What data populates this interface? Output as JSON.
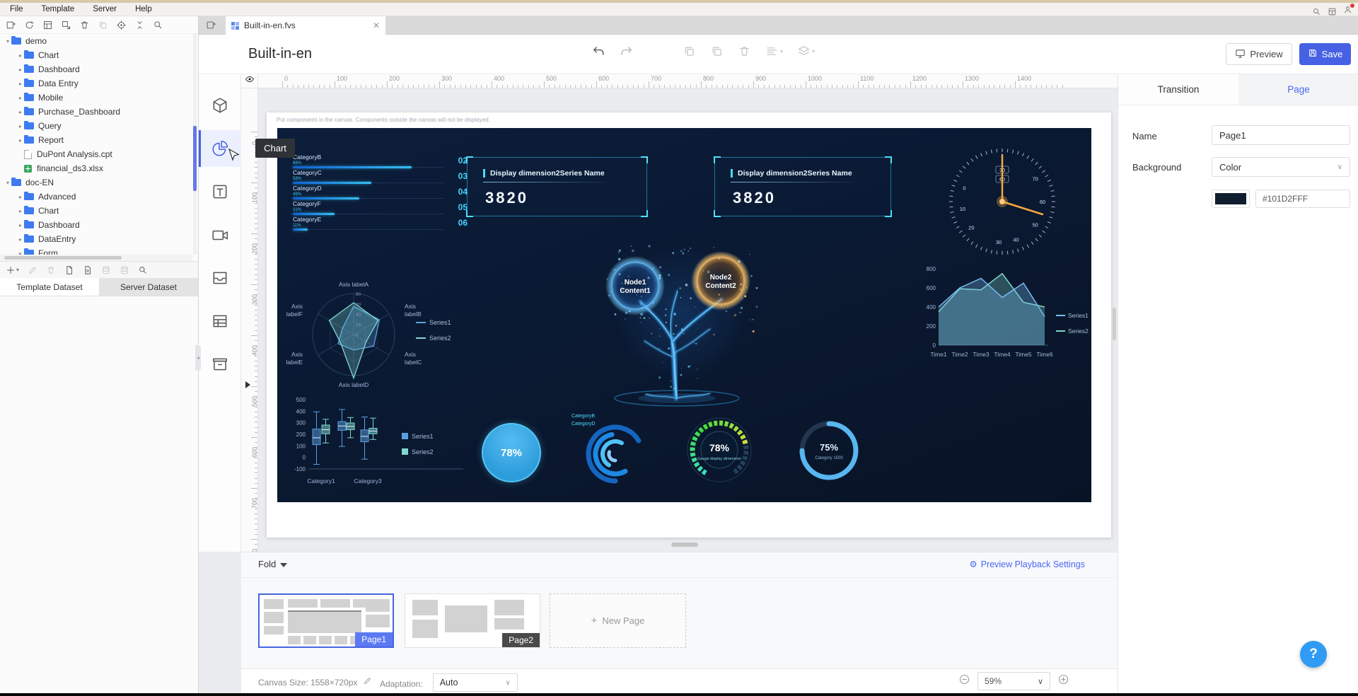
{
  "menu_bar": {
    "items": [
      "File",
      "Template",
      "Server",
      "Help"
    ]
  },
  "window_icons": [
    "search-icon",
    "layout-icon",
    "account-icon",
    "notification-dot"
  ],
  "left_panel": {
    "toolbar_icons": [
      "new-template",
      "refresh",
      "report-view",
      "add-to-node",
      "delete",
      "copy",
      "locate",
      "collapse-all",
      "search"
    ],
    "tree": [
      {
        "label": "demo",
        "level": 0,
        "icon": "folder",
        "caret": "open"
      },
      {
        "label": "Chart",
        "level": 1,
        "icon": "folder",
        "caret": "closed"
      },
      {
        "label": "Dashboard",
        "level": 1,
        "icon": "folder",
        "caret": "closed"
      },
      {
        "label": "Data Entry",
        "level": 1,
        "icon": "folder",
        "caret": "closed"
      },
      {
        "label": "Mobile",
        "level": 1,
        "icon": "folder",
        "caret": "closed"
      },
      {
        "label": "Purchase_Dashboard",
        "level": 1,
        "icon": "folder",
        "caret": "closed"
      },
      {
        "label": "Query",
        "level": 1,
        "icon": "folder",
        "caret": "closed"
      },
      {
        "label": "Report",
        "level": 1,
        "icon": "folder",
        "caret": "closed"
      },
      {
        "label": "DuPont Analysis.cpt",
        "level": 1,
        "icon": "cpt",
        "caret": "none"
      },
      {
        "label": "financial_ds3.xlsx",
        "level": 1,
        "icon": "xlsx",
        "caret": "none"
      },
      {
        "label": "doc-EN",
        "level": 0,
        "icon": "folder",
        "caret": "open"
      },
      {
        "label": "Advanced",
        "level": 1,
        "icon": "folder",
        "caret": "closed"
      },
      {
        "label": "Chart",
        "level": 1,
        "icon": "folder",
        "caret": "closed"
      },
      {
        "label": "Dashboard",
        "level": 1,
        "icon": "folder",
        "caret": "closed"
      },
      {
        "label": "DataEntry",
        "level": 1,
        "icon": "folder",
        "caret": "closed"
      },
      {
        "label": "Form",
        "level": 1,
        "icon": "folder",
        "caret": "closed"
      }
    ],
    "dataset_toolbar_icons": [
      "add-dataset",
      "edit-dataset",
      "delete-dataset",
      "preview-dataset",
      "edit-sql",
      "copy-dataset",
      "move-dataset",
      "search-dataset"
    ],
    "tabs": [
      {
        "label": "Template Dataset",
        "active": true
      },
      {
        "label": "Server Dataset",
        "active": false
      }
    ]
  },
  "tab_strip": {
    "tab_label": "Built-in-en.fvs"
  },
  "header": {
    "title": "Built-in-en",
    "toolbar_icons": [
      "undo",
      "redo",
      "copy",
      "paste",
      "delete",
      "align",
      "arrange"
    ],
    "preview_label": "Preview",
    "save_label": "Save"
  },
  "tool_column": {
    "icons": [
      {
        "name": "assets",
        "active": false
      },
      {
        "name": "chart",
        "active": true
      },
      {
        "name": "text",
        "active": false
      },
      {
        "name": "media",
        "active": false
      },
      {
        "name": "material",
        "active": false
      },
      {
        "name": "table",
        "active": false
      },
      {
        "name": "component",
        "active": false
      }
    ],
    "bottom_icons": [
      "layers",
      "bottom-bar"
    ]
  },
  "tooltip": {
    "label": "Chart"
  },
  "rulers": {
    "horizontal": [
      "0",
      "100",
      "200",
      "300",
      "400",
      "500",
      "600",
      "700",
      "800",
      "900",
      "1000",
      "1100",
      "1200",
      "1300",
      "1400"
    ],
    "vertical": [
      "0",
      "100",
      "200",
      "300",
      "400",
      "500",
      "600",
      "700",
      "800"
    ]
  },
  "canvas": {
    "hint": "Put components in the canvas. Components outside the canvas will not be displayed.",
    "background": "#0B1C38"
  },
  "right_panel": {
    "tabs": [
      {
        "label": "Transition",
        "active": false
      },
      {
        "label": "Page",
        "active": true
      }
    ],
    "name_label": "Name",
    "name_value": "Page1",
    "background_label": "Background",
    "background_value": "Color",
    "swatch_color": "#101D2F",
    "color_hex": "#101D2FFF"
  },
  "bottom_panel": {
    "fold_label": "Fold",
    "preview_playback_label": "Preview Playback Settings",
    "pages": [
      {
        "label": "Page1",
        "active": true
      },
      {
        "label": "Page2",
        "active": false
      }
    ],
    "new_page_label": "New Page"
  },
  "size_bar": {
    "canvas_size_label": "Canvas Size: 1558×720px",
    "adaptation_label": "Adaptation:",
    "adaptation_value": "Auto",
    "zoom_value": "59%"
  },
  "help_button_label": "?",
  "chart_data": [
    {
      "id": "ranking-bar",
      "type": "bar",
      "orientation": "horizontal",
      "categories": [
        "CategoryB",
        "CategoryC",
        "CategoryD",
        "CategoryF",
        "CategoryE"
      ],
      "ranks": [
        "02",
        "03",
        "04",
        "05",
        "06"
      ],
      "values": [
        88,
        58,
        49,
        31,
        11
      ],
      "max": 88,
      "pct_labels": [
        "88%",
        "58%",
        "49%",
        "31%",
        "11%"
      ],
      "bar_color": "#2FA8F8"
    },
    {
      "id": "kpi-card-left",
      "type": "kpi",
      "title": "Display dimension2Series Name",
      "value": "3820"
    },
    {
      "id": "kpi-card-right",
      "type": "kpi",
      "title": "Display dimension2Series Name",
      "value": "3820"
    },
    {
      "id": "clock-gauge",
      "type": "gauge",
      "tick_labels": [
        "0",
        "10",
        "20",
        "30",
        "40",
        "50",
        "60",
        "70"
      ],
      "center_labels": [
        "30",
        "60"
      ],
      "needle_color": "#F6A83C"
    },
    {
      "id": "radar",
      "type": "radar",
      "axes": [
        "Axis labelA",
        "Axis labelB",
        "Axis labelC",
        "Axis labelD",
        "Axis labelE",
        "Axis labelF"
      ],
      "scale_ticks": [
        "80",
        "60",
        "40",
        "20",
        "0"
      ],
      "max": 80,
      "series": [
        {
          "name": "Series1",
          "color": "#5C9FE0",
          "values": [
            55,
            58,
            45,
            30,
            35,
            25
          ]
        },
        {
          "name": "Series2",
          "color": "#7FD8D0",
          "values": [
            62,
            55,
            28,
            85,
            30,
            55
          ]
        }
      ]
    },
    {
      "id": "area-chart",
      "type": "area",
      "x": [
        "Time1",
        "Time2",
        "Time3",
        "Time4",
        "Time5",
        "Time6"
      ],
      "yticks": [
        "800",
        "600",
        "400",
        "200",
        "0"
      ],
      "ylim": [
        0,
        800
      ],
      "series": [
        {
          "name": "Series1",
          "color": "#79BCF2",
          "values": [
            400,
            600,
            700,
            500,
            650,
            300
          ]
        },
        {
          "name": "Series2",
          "color": "#7ED8C9",
          "values": [
            350,
            590,
            580,
            750,
            450,
            400
          ]
        }
      ]
    },
    {
      "id": "box-plot",
      "type": "boxplot",
      "yticks": [
        "500",
        "400",
        "300",
        "200",
        "100",
        "0",
        "-100"
      ],
      "ylim": [
        -100,
        500
      ],
      "categories": [
        "Category1",
        "Category3"
      ],
      "legend": [
        {
          "name": "Series1",
          "color": "#5C9FE0"
        },
        {
          "name": "Series2",
          "color": "#7FD8D0"
        }
      ],
      "boxes": [
        {
          "low": -60,
          "q1": 110,
          "med": 170,
          "q3": 245,
          "high": 395,
          "s": 0
        },
        {
          "low": 125,
          "q1": 205,
          "med": 240,
          "q3": 280,
          "high": 330,
          "s": 1
        },
        {
          "low": 95,
          "q1": 235,
          "med": 272,
          "q3": 310,
          "high": 415,
          "s": 0
        },
        {
          "low": 170,
          "q1": 240,
          "med": 268,
          "q3": 298,
          "high": 345,
          "s": 1
        },
        {
          "low": -15,
          "q1": 135,
          "med": 182,
          "q3": 238,
          "high": 350,
          "s": 0
        },
        {
          "low": 155,
          "q1": 205,
          "med": 228,
          "q3": 252,
          "high": 340,
          "s": 1
        }
      ]
    },
    {
      "id": "liquid-gauge",
      "type": "gauge",
      "value": "78%",
      "color": "#2D9CDB"
    },
    {
      "id": "ring-arcs",
      "type": "ring",
      "labels": [
        "CategoryB",
        "CategoryD"
      ]
    },
    {
      "id": "dial-gauge",
      "type": "gauge",
      "value": "78%",
      "label": "Gauge display dimension"
    },
    {
      "id": "progress-ring",
      "type": "gauge",
      "value": "75%",
      "label": "Category 1500"
    },
    {
      "id": "node-graph",
      "type": "graph",
      "nodes": [
        {
          "title": "Node1",
          "subtitle": "Content1",
          "color": "#35A8FF"
        },
        {
          "title": "Node2",
          "subtitle": "Content2",
          "color": "#F5A623"
        }
      ]
    }
  ]
}
